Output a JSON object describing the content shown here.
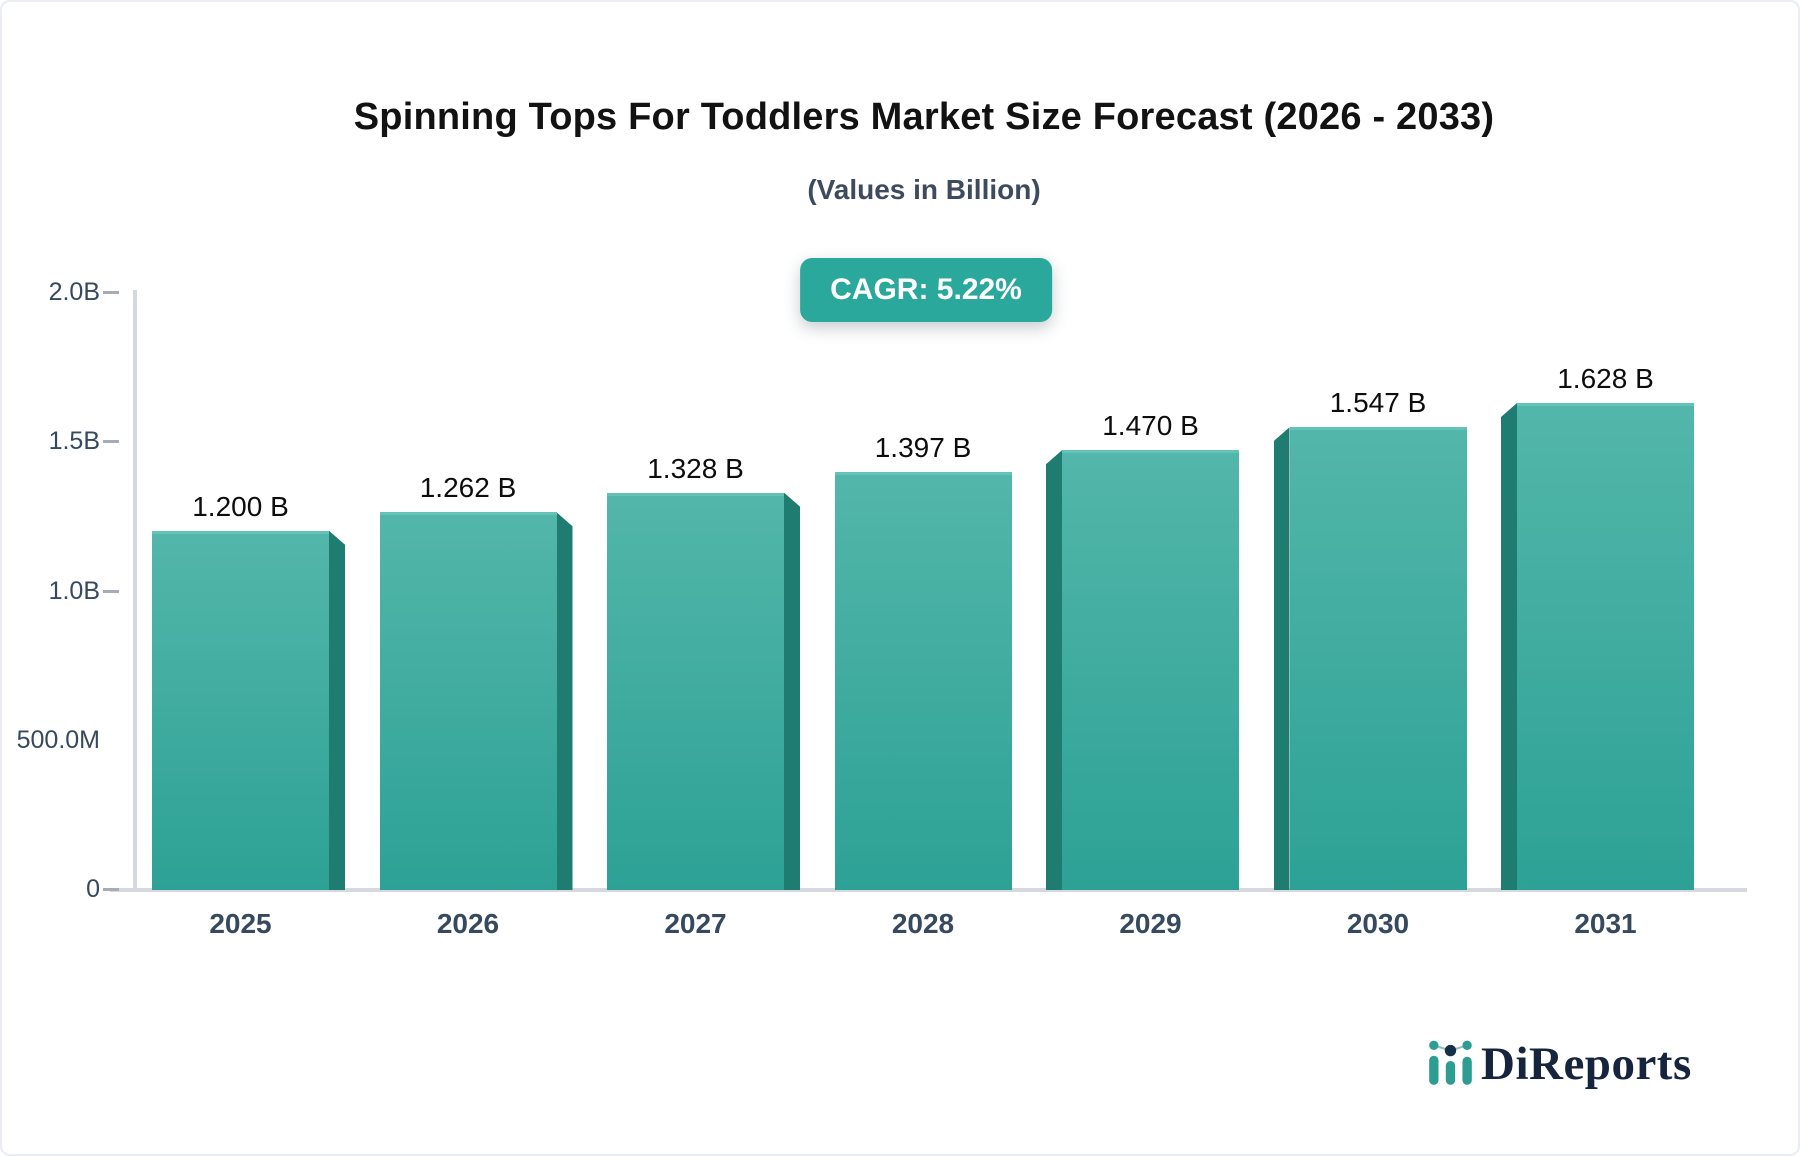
{
  "header": {
    "cagr_label": "CAGR: 5.22%",
    "cagr_bg": "#2aa89b"
  },
  "chart_data": {
    "type": "bar",
    "title": "Spinning Tops For Toddlers Market Size Forecast (2026 - 2033)",
    "subtitle": "(Values in Billion)",
    "categories": [
      "2025",
      "2026",
      "2027",
      "2028",
      "2029",
      "2030",
      "2031"
    ],
    "values": [
      1.2,
      1.262,
      1.328,
      1.397,
      1.47,
      1.547,
      1.628
    ],
    "value_labels": [
      "1.200 B",
      "1.262 B",
      "1.328 B",
      "1.397 B",
      "1.470 B",
      "1.547 B",
      "1.628 B"
    ],
    "xlabel": "",
    "ylabel": "",
    "ylim": [
      0,
      2.0
    ],
    "grid": false,
    "legend": false,
    "y_ticks": [
      {
        "label": "2.0B",
        "value": 2.0,
        "dash": true
      },
      {
        "label": "1.5B",
        "value": 1.5,
        "dash": true
      },
      {
        "label": "1.0B",
        "value": 1.0,
        "dash": true
      },
      {
        "label": "500.0M",
        "value": 0.5,
        "dash": false
      },
      {
        "label": "0",
        "value": 0.0,
        "dash": true
      }
    ],
    "colors": {
      "bar_face_top": "#53b6aa",
      "bar_face_bottom": "#2da195",
      "bar_top_edge": "#63c3b7",
      "bar_side": "#1f7c70",
      "axis_line": "#d5d8de",
      "tick_dash": "#a6abb8",
      "axis_label": "#36495e",
      "value_label": "#0d0d0d"
    }
  },
  "logo": {
    "text": "DiReports",
    "text_color": "#16243e",
    "icon_teal": "#2d9d92",
    "icon_navy": "#16304a"
  }
}
